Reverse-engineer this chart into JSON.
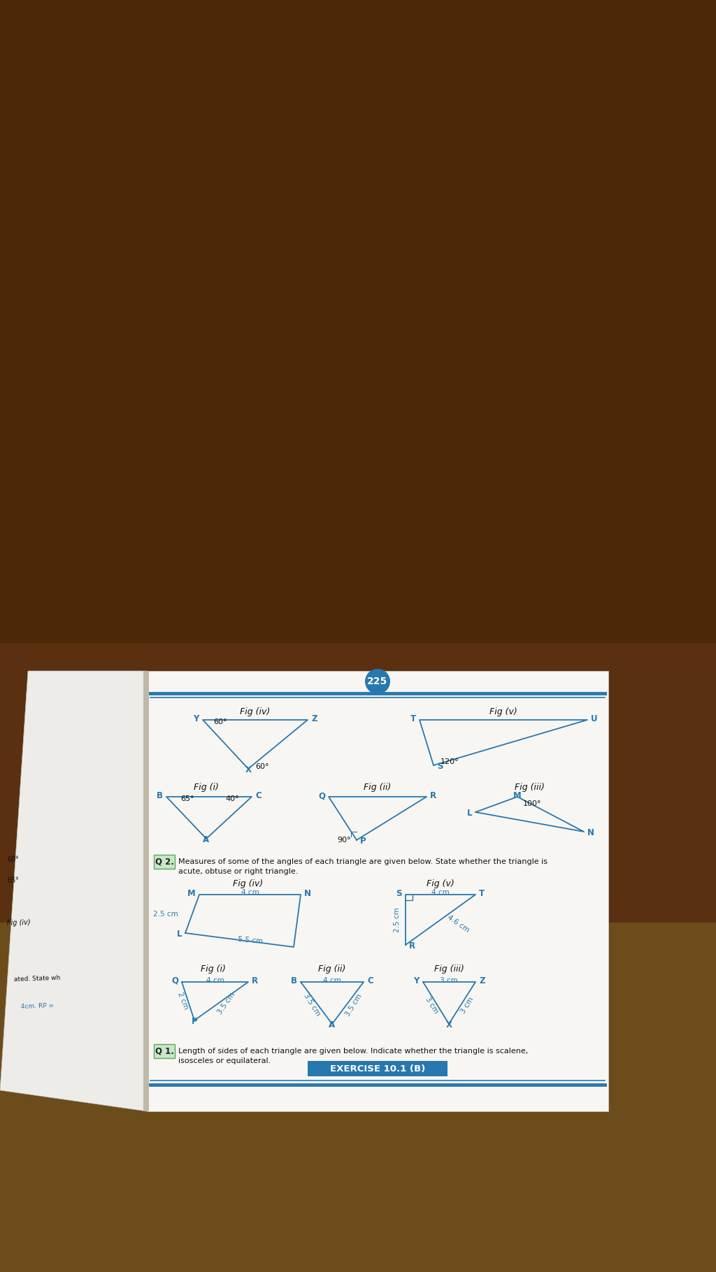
{
  "title": "EXERCISE 10.1 (B)",
  "page_bg_color": "#6b4226",
  "paper_color": "#f0eeea",
  "paper_left_shadow": "#d8d4cc",
  "line_color": "#2878b0",
  "triangle_color": "#2878b0",
  "label_color": "#2878b0",
  "title_bg": "#2878b0",
  "title_color": "#ffffff",
  "q_box_bg": "#c8e6c9",
  "q_box_border": "#5aaa5a",
  "text_color": "#111111",
  "page_number": "225",
  "page_number_bg": "#2878b0",
  "bottom_stripe_color": "#a0522d",
  "bottom_fabric_color": "#8b6914"
}
